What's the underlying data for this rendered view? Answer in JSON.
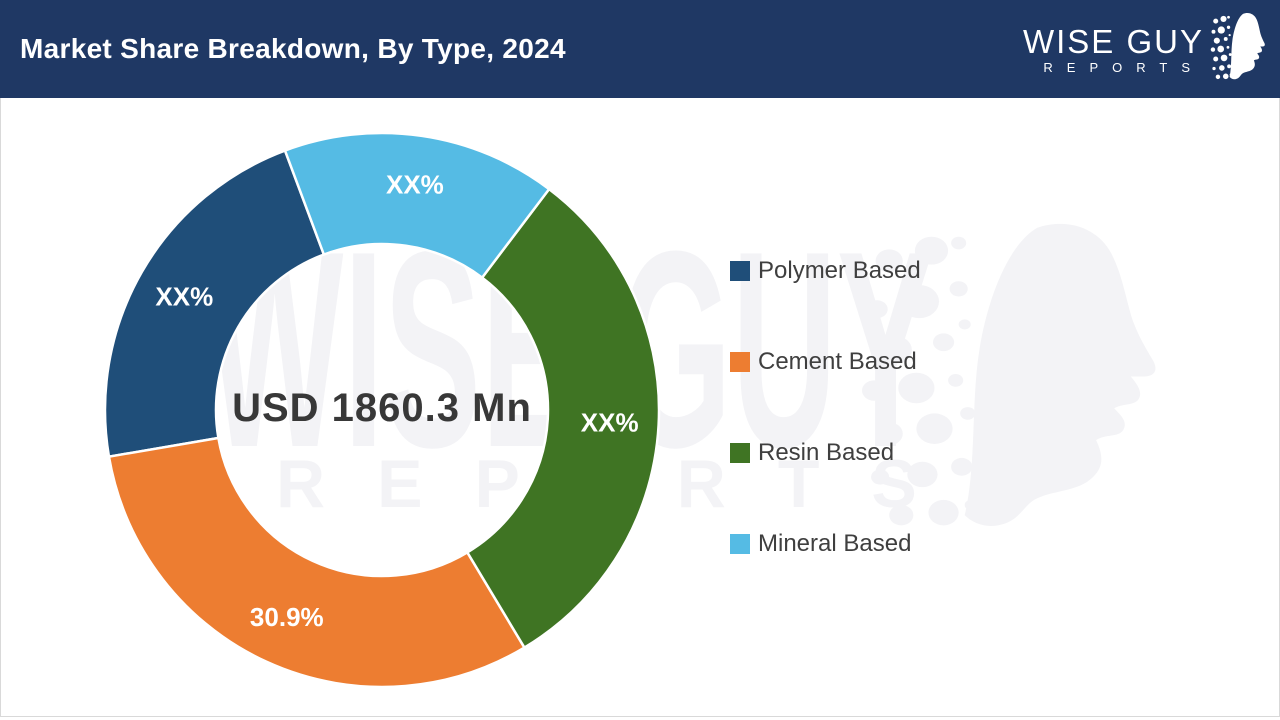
{
  "header": {
    "title": "Market Share Breakdown, By Type, 2024",
    "bg_color": "#1f3864",
    "logo": {
      "line1": "WISE GUY",
      "line2": "REPORTS"
    }
  },
  "watermark": {
    "line1": "WISE GUY",
    "line2": "REPORTS"
  },
  "chart_data": {
    "type": "pie",
    "subtype": "donut",
    "title": "Market Share Breakdown, By Type, 2024",
    "center_label": "USD 1860.3 Mn",
    "segments": [
      {
        "name": "Polymer Based",
        "color": "#1f4e79",
        "value_pct": 22.0,
        "label": "XX%"
      },
      {
        "name": "Cement Based",
        "color": "#ed7d31",
        "value_pct": 30.9,
        "label": "30.9%"
      },
      {
        "name": "Resin Based",
        "color": "#3f7423",
        "value_pct": 31.1,
        "label": "XX%"
      },
      {
        "name": "Mineral Based",
        "color": "#55bbe4",
        "value_pct": 16.0,
        "label": "XX%"
      }
    ],
    "geometry": {
      "outer_radius": 277,
      "inner_radius": 166,
      "label_radius": 228,
      "start_angle_deg": 110.5,
      "direction": "ccw"
    },
    "legend_position": "right"
  }
}
